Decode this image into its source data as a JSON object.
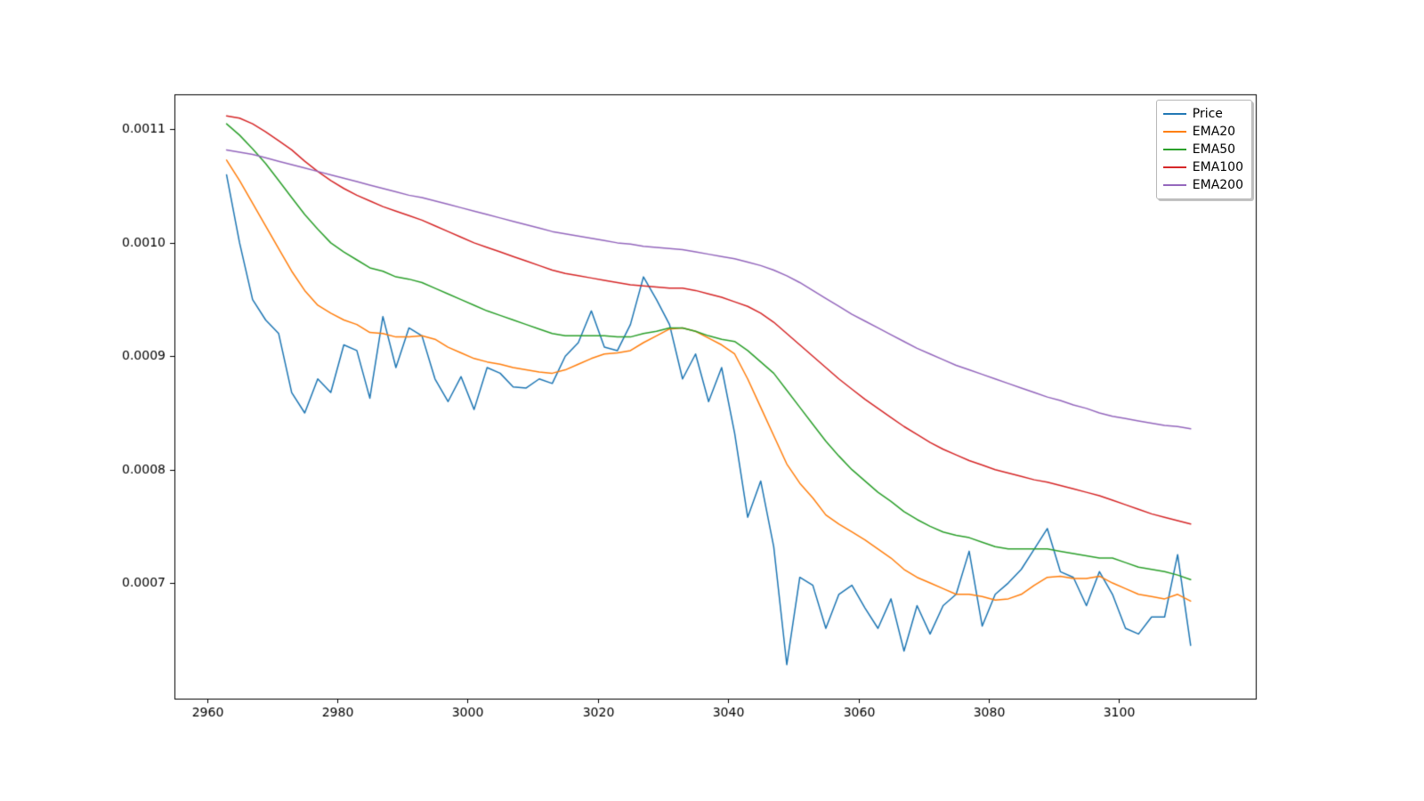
{
  "figure": {
    "background": "#ffffff",
    "axes_background": "#ffffff",
    "spine_color": "#000000",
    "tick_color": "#000000",
    "tick_label_color": "#000000"
  },
  "legend": {
    "position": "upper right",
    "entries": [
      {
        "label": "Price",
        "color": "#1f77b4"
      },
      {
        "label": "EMA20",
        "color": "#ff7f0e"
      },
      {
        "label": "EMA50",
        "color": "#2ca02c"
      },
      {
        "label": "EMA100",
        "color": "#d62728"
      },
      {
        "label": "EMA200",
        "color": "#9467bd"
      }
    ]
  },
  "chart_data": {
    "type": "line",
    "title": "",
    "xlabel": "",
    "ylabel": "",
    "grid": false,
    "legend_position": "upper right",
    "xlim": [
      2955,
      3121
    ],
    "ylim": [
      0.000598,
      0.001131
    ],
    "x_ticks": [
      2960,
      2980,
      3000,
      3020,
      3040,
      3060,
      3080,
      3100
    ],
    "x_tick_labels": [
      "2960",
      "2980",
      "3000",
      "3020",
      "3040",
      "3060",
      "3080",
      "3100"
    ],
    "y_ticks": [
      0.0007,
      0.0008,
      0.0009,
      0.001,
      0.0011
    ],
    "y_tick_labels": [
      "0.0007",
      "0.0008",
      "0.0009",
      "0.0010",
      "0.0011"
    ],
    "x": [
      2963,
      2965,
      2967,
      2969,
      2971,
      2973,
      2975,
      2977,
      2979,
      2981,
      2983,
      2985,
      2987,
      2989,
      2991,
      2993,
      2995,
      2997,
      2999,
      3001,
      3003,
      3005,
      3007,
      3009,
      3011,
      3013,
      3015,
      3017,
      3019,
      3021,
      3023,
      3025,
      3027,
      3029,
      3031,
      3033,
      3035,
      3037,
      3039,
      3041,
      3043,
      3045,
      3047,
      3049,
      3051,
      3053,
      3055,
      3057,
      3059,
      3061,
      3063,
      3065,
      3067,
      3069,
      3071,
      3073,
      3075,
      3077,
      3079,
      3081,
      3083,
      3085,
      3087,
      3089,
      3091,
      3093,
      3095,
      3097,
      3099,
      3101,
      3103,
      3105,
      3107,
      3109,
      3111
    ],
    "series": [
      {
        "name": "Price",
        "color": "#1f77b4",
        "values": [
          0.00106,
          0.001,
          0.00095,
          0.000932,
          0.00092,
          0.000868,
          0.00085,
          0.00088,
          0.000868,
          0.00091,
          0.000905,
          0.000863,
          0.000935,
          0.00089,
          0.000925,
          0.000918,
          0.00088,
          0.00086,
          0.000882,
          0.000853,
          0.00089,
          0.000885,
          0.000873,
          0.000872,
          0.00088,
          0.000876,
          0.0009,
          0.000912,
          0.00094,
          0.000908,
          0.000905,
          0.000928,
          0.00097,
          0.00095,
          0.000928,
          0.00088,
          0.000902,
          0.00086,
          0.00089,
          0.000832,
          0.000758,
          0.00079,
          0.000732,
          0.000628,
          0.000705,
          0.000698,
          0.00066,
          0.00069,
          0.000698,
          0.000678,
          0.00066,
          0.000686,
          0.00064,
          0.00068,
          0.000655,
          0.00068,
          0.00069,
          0.000728,
          0.000662,
          0.00069,
          0.0007,
          0.000712,
          0.00073,
          0.000748,
          0.00071,
          0.000705,
          0.00068,
          0.00071,
          0.00069,
          0.00066,
          0.000655,
          0.00067,
          0.00067,
          0.000725,
          0.000645
        ]
      },
      {
        "name": "EMA20",
        "color": "#ff7f0e",
        "values": [
          0.001073,
          0.001055,
          0.001035,
          0.001015,
          0.000995,
          0.000975,
          0.000958,
          0.000945,
          0.000938,
          0.000932,
          0.000928,
          0.000921,
          0.00092,
          0.000917,
          0.000917,
          0.000918,
          0.000915,
          0.000908,
          0.000903,
          0.000898,
          0.000895,
          0.000893,
          0.00089,
          0.000888,
          0.000886,
          0.000885,
          0.000888,
          0.000893,
          0.000898,
          0.000902,
          0.000903,
          0.000905,
          0.000912,
          0.000918,
          0.000924,
          0.000925,
          0.000922,
          0.000916,
          0.00091,
          0.000902,
          0.00088,
          0.000855,
          0.00083,
          0.000805,
          0.000788,
          0.000775,
          0.00076,
          0.000752,
          0.000745,
          0.000738,
          0.00073,
          0.000722,
          0.000712,
          0.000705,
          0.0007,
          0.000695,
          0.00069,
          0.00069,
          0.000688,
          0.000685,
          0.000686,
          0.00069,
          0.000698,
          0.000705,
          0.000706,
          0.000704,
          0.000704,
          0.000706,
          0.0007,
          0.000695,
          0.00069,
          0.000688,
          0.000686,
          0.00069,
          0.000684
        ]
      },
      {
        "name": "EMA50",
        "color": "#2ca02c",
        "values": [
          0.001105,
          0.001095,
          0.001083,
          0.00107,
          0.001055,
          0.00104,
          0.001025,
          0.001012,
          0.001,
          0.000992,
          0.000985,
          0.000978,
          0.000975,
          0.00097,
          0.000968,
          0.000965,
          0.00096,
          0.000955,
          0.00095,
          0.000945,
          0.00094,
          0.000936,
          0.000932,
          0.000928,
          0.000924,
          0.00092,
          0.000918,
          0.000918,
          0.000918,
          0.000918,
          0.000917,
          0.000917,
          0.00092,
          0.000922,
          0.000925,
          0.000925,
          0.000922,
          0.000918,
          0.000915,
          0.000913,
          0.000905,
          0.000895,
          0.000885,
          0.00087,
          0.000855,
          0.00084,
          0.000825,
          0.000812,
          0.0008,
          0.00079,
          0.00078,
          0.000772,
          0.000763,
          0.000756,
          0.00075,
          0.000745,
          0.000742,
          0.00074,
          0.000736,
          0.000732,
          0.00073,
          0.00073,
          0.00073,
          0.00073,
          0.000728,
          0.000726,
          0.000724,
          0.000722,
          0.000722,
          0.000718,
          0.000714,
          0.000712,
          0.00071,
          0.000707,
          0.000703
        ]
      },
      {
        "name": "EMA100",
        "color": "#d62728",
        "values": [
          0.001112,
          0.00111,
          0.001105,
          0.001098,
          0.00109,
          0.001082,
          0.001072,
          0.001063,
          0.001055,
          0.001048,
          0.001042,
          0.001037,
          0.001032,
          0.001028,
          0.001024,
          0.00102,
          0.001015,
          0.00101,
          0.001005,
          0.001,
          0.000996,
          0.000992,
          0.000988,
          0.000984,
          0.00098,
          0.000976,
          0.000973,
          0.000971,
          0.000969,
          0.000967,
          0.000965,
          0.000963,
          0.000962,
          0.000961,
          0.00096,
          0.00096,
          0.000958,
          0.000955,
          0.000952,
          0.000948,
          0.000944,
          0.000938,
          0.00093,
          0.00092,
          0.00091,
          0.0009,
          0.00089,
          0.00088,
          0.000871,
          0.000862,
          0.000854,
          0.000846,
          0.000838,
          0.000831,
          0.000824,
          0.000818,
          0.000813,
          0.000808,
          0.000804,
          0.0008,
          0.000797,
          0.000794,
          0.000791,
          0.000789,
          0.000786,
          0.000783,
          0.00078,
          0.000777,
          0.000773,
          0.000769,
          0.000765,
          0.000761,
          0.000758,
          0.000755,
          0.000752
        ]
      },
      {
        "name": "EMA200",
        "color": "#9467bd",
        "values": [
          0.001082,
          0.00108,
          0.001078,
          0.001075,
          0.001072,
          0.001069,
          0.001066,
          0.001063,
          0.00106,
          0.001057,
          0.001054,
          0.001051,
          0.001048,
          0.001045,
          0.001042,
          0.00104,
          0.001037,
          0.001034,
          0.001031,
          0.001028,
          0.001025,
          0.001022,
          0.001019,
          0.001016,
          0.001013,
          0.00101,
          0.001008,
          0.001006,
          0.001004,
          0.001002,
          0.001,
          0.000999,
          0.000997,
          0.000996,
          0.000995,
          0.000994,
          0.000992,
          0.00099,
          0.000988,
          0.000986,
          0.000983,
          0.00098,
          0.000976,
          0.000971,
          0.000965,
          0.000958,
          0.000951,
          0.000944,
          0.000937,
          0.000931,
          0.000925,
          0.000919,
          0.000913,
          0.000907,
          0.000902,
          0.000897,
          0.000892,
          0.000888,
          0.000884,
          0.00088,
          0.000876,
          0.000872,
          0.000868,
          0.000864,
          0.000861,
          0.000857,
          0.000854,
          0.00085,
          0.000847,
          0.000845,
          0.000843,
          0.000841,
          0.000839,
          0.000838,
          0.000836
        ]
      }
    ]
  }
}
